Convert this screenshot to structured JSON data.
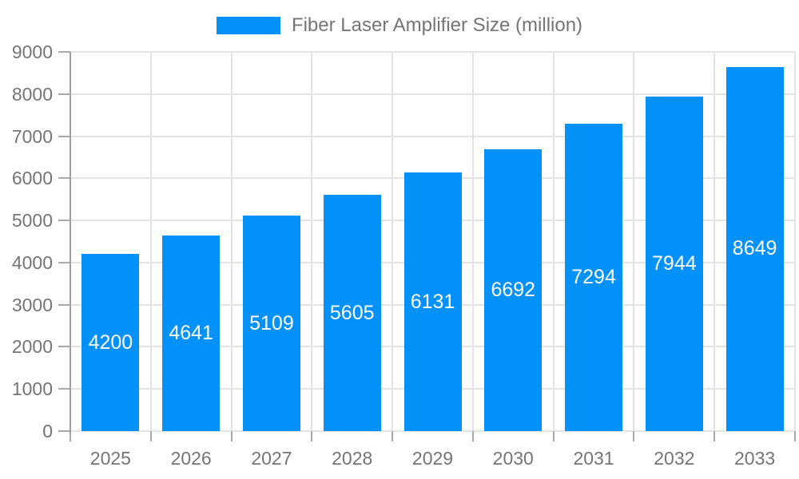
{
  "chart_data": {
    "type": "bar",
    "title": "Fiber Laser Amplifier Size (million)",
    "categories": [
      "2025",
      "2026",
      "2027",
      "2028",
      "2029",
      "2030",
      "2031",
      "2032",
      "2033"
    ],
    "values": [
      4200,
      4641,
      5109,
      5605,
      6131,
      6692,
      7294,
      7944,
      8649
    ],
    "series": [
      {
        "name": "Fiber Laser Amplifier Size (million)",
        "values": [
          4200,
          4641,
          5109,
          5605,
          6131,
          6692,
          7294,
          7944,
          8649
        ]
      }
    ],
    "xlabel": "",
    "ylabel": "",
    "ylim": [
      0,
      9000
    ],
    "ytick_step": 1000,
    "ytick_labels": [
      "0",
      "1000",
      "2000",
      "3000",
      "4000",
      "5000",
      "6000",
      "7000",
      "8000",
      "9000"
    ],
    "grid": true,
    "legend_position": "top-center",
    "value_labels": "centered-inside-bars",
    "colors": {
      "bar": "#0591fa",
      "value_label_text": "#ffffff",
      "axis_text": "#757575",
      "gridline": "#e3e3e3",
      "axis_line": "#9e9e9e",
      "tick": "#a8a8a8",
      "background": "#ffffff"
    }
  }
}
